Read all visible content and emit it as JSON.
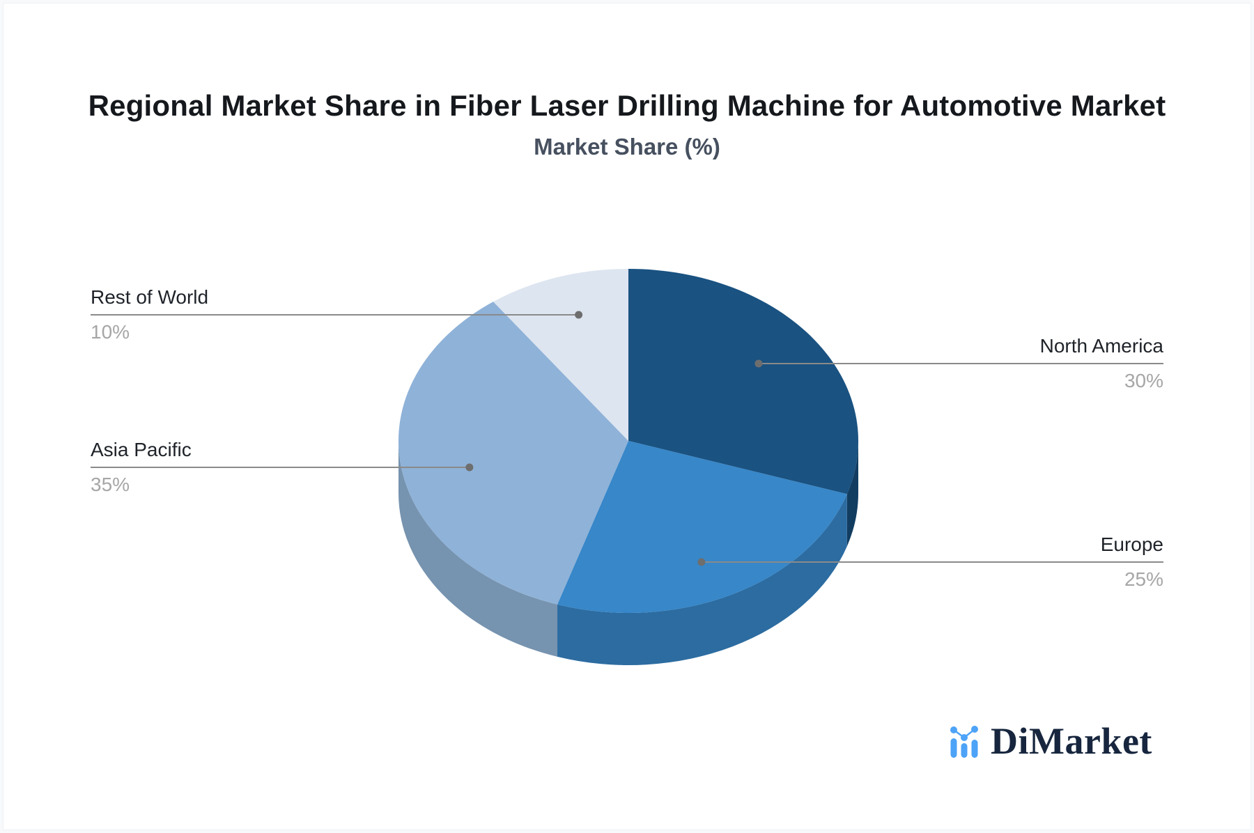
{
  "chart_data": {
    "type": "pie",
    "title": "Regional Market Share in Fiber Laser Drilling Machine for Automotive Market",
    "subtitle": "Market Share (%)",
    "unit": "%",
    "effect": "3d-depth",
    "start_angle_deg": 0,
    "direction": "clockwise",
    "legend_position": "none",
    "labels_style": "callout-leader-lines",
    "leader_line_color": "#8a8a8a",
    "leader_dot_color": "#6e6e6e",
    "slices": [
      {
        "label": "North America",
        "value": 30,
        "display": "30%",
        "color": "#1A5281",
        "side_color": "#123D61",
        "callout_side": "right"
      },
      {
        "label": "Europe",
        "value": 25,
        "display": "25%",
        "color": "#3787C9",
        "side_color": "#2C6CA1",
        "callout_side": "right"
      },
      {
        "label": "Asia Pacific",
        "value": 35,
        "display": "35%",
        "color": "#8FB2D8",
        "side_color": "#7693AF",
        "callout_side": "left"
      },
      {
        "label": "Rest of World",
        "value": 10,
        "display": "10%",
        "color": "#DDE5F0",
        "side_color": "#C3CEDF",
        "callout_side": "left"
      }
    ]
  },
  "brand": {
    "name": "DiMarket",
    "icon": "bar-sparkline-chart-icon",
    "icon_color": "#4DA3F7",
    "text_color": "#17263E"
  }
}
